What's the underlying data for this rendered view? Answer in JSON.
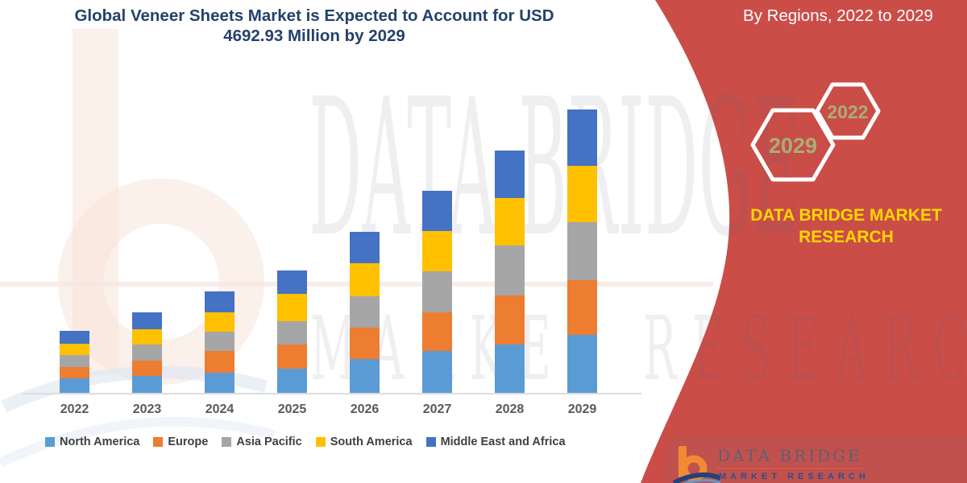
{
  "title": {
    "line1": "Global Veneer Sheets Market is Expected to Account for USD",
    "line2": "4692.93 Million by 2029"
  },
  "banner": {
    "heading": "By Regions, 2022 to 2029",
    "hexagon_big_label": "2029",
    "hexagon_small_label": "2022",
    "brand_line1": "DATA BRIDGE MARKET",
    "brand_line2": "RESEARCH",
    "color": "#ca4d48",
    "accent_yellow": "#ffd700",
    "hexagon_text_color": "#a9ae74"
  },
  "watermark": {
    "line1": "DATA BRIDGE",
    "line2": "MARKET RESEARCH"
  },
  "footer_logo": {
    "brand": "DATA BRIDGE",
    "subtext": "MARKET RESEARCH"
  },
  "chart_data": {
    "type": "bar",
    "stacked": true,
    "unit": "USD Million",
    "categories": [
      "2022",
      "2023",
      "2024",
      "2025",
      "2026",
      "2027",
      "2028",
      "2029"
    ],
    "series": [
      {
        "name": "North America",
        "color": "#5B9BD5",
        "values": [
          244,
          276,
          333,
          400,
          555,
          688,
          799,
          955
        ]
      },
      {
        "name": "Europe",
        "color": "#ED7D31",
        "values": [
          177,
          257,
          356,
          400,
          519,
          643,
          812,
          910
        ]
      },
      {
        "name": "Asia Pacific",
        "color": "#A6A6A6",
        "values": [
          200,
          266,
          324,
          392,
          523,
          688,
          831,
          963.93
        ]
      },
      {
        "name": "South America",
        "color": "#FFC000",
        "values": [
          192,
          258,
          320,
          453,
          555,
          657,
          786,
          932
        ]
      },
      {
        "name": "Middle East and Africa",
        "color": "#4472C4",
        "values": [
          208,
          274,
          342,
          386,
          519,
          675,
          786,
          932
        ]
      }
    ],
    "totals": [
      1021,
      1331,
      1675,
      2031,
      2671,
      3351,
      4014,
      4692.93
    ],
    "ylim": [
      0,
      4800
    ],
    "xlabel": "",
    "ylabel": "",
    "grid": false,
    "legend_position": "bottom"
  }
}
